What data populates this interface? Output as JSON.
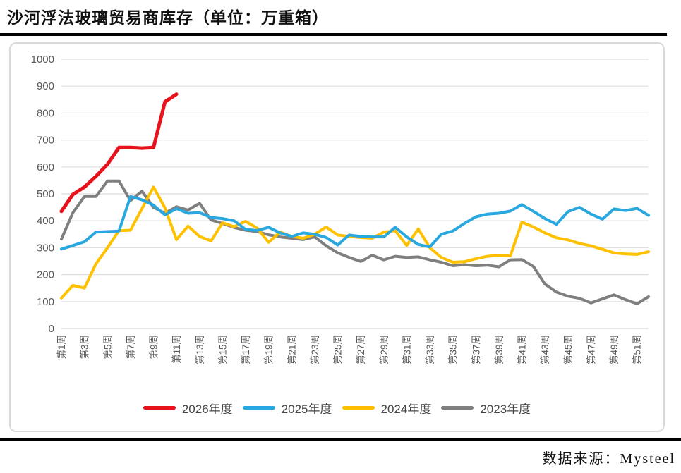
{
  "page": {
    "title": "沙河浮法玻璃贸易商库存（单位：万重箱）",
    "source_label": "数据来源：Mysteel"
  },
  "chart_data": {
    "type": "line",
    "title": "沙河浮法玻璃贸易商库存（单位：万重箱）",
    "unit": "万重箱",
    "grid": true,
    "legend_position": "bottom",
    "y_axis": {
      "min": 0,
      "max": 1000,
      "step": 100,
      "ticks": [
        0,
        100,
        200,
        300,
        400,
        500,
        600,
        700,
        800,
        900,
        1000
      ]
    },
    "x_axis": {
      "weeks_total": 52,
      "labels": [
        "第1周",
        "第3周",
        "第5周",
        "第7周",
        "第9周",
        "第11周",
        "第13周",
        "第15周",
        "第17周",
        "第19周",
        "第21周",
        "第23周",
        "第25周",
        "第27周",
        "第29周",
        "第31周",
        "第33周",
        "第35周",
        "第37周",
        "第39周",
        "第41周",
        "第43周",
        "第45周",
        "第47周",
        "第49周",
        "第51周"
      ],
      "label_week_step": 2
    },
    "series": [
      {
        "name": "2026年度",
        "color": "#e8121c",
        "line_width": 5,
        "values": [
          435,
          498,
          525,
          565,
          610,
          672,
          672,
          670,
          672,
          842,
          870
        ]
      },
      {
        "name": "2025年度",
        "color": "#29a8e0",
        "line_width": 4,
        "values": [
          295,
          308,
          322,
          358,
          360,
          362,
          490,
          478,
          458,
          422,
          445,
          428,
          430,
          412,
          408,
          400,
          368,
          364,
          376,
          355,
          342,
          355,
          350,
          338,
          310,
          347,
          342,
          340,
          340,
          376,
          340,
          312,
          303,
          350,
          362,
          390,
          415,
          425,
          428,
          436,
          460,
          435,
          408,
          387,
          434,
          450,
          425,
          406,
          444,
          438,
          446,
          420
        ]
      },
      {
        "name": "2024年度",
        "color": "#ffc000",
        "line_width": 4,
        "values": [
          113,
          160,
          150,
          240,
          300,
          363,
          365,
          445,
          525,
          448,
          330,
          380,
          342,
          325,
          393,
          378,
          398,
          373,
          320,
          358,
          342,
          335,
          350,
          377,
          347,
          342,
          338,
          335,
          358,
          363,
          308,
          370,
          300,
          264,
          246,
          248,
          259,
          268,
          272,
          270,
          395,
          377,
          355,
          337,
          329,
          316,
          307,
          294,
          281,
          277,
          275,
          285
        ]
      },
      {
        "name": "2023年度",
        "color": "#7f7f7f",
        "line_width": 4,
        "values": [
          332,
          430,
          490,
          490,
          548,
          548,
          475,
          510,
          450,
          428,
          452,
          440,
          465,
          403,
          390,
          375,
          365,
          360,
          348,
          340,
          335,
          330,
          340,
          307,
          281,
          264,
          249,
          272,
          255,
          268,
          264,
          266,
          255,
          246,
          233,
          237,
          233,
          235,
          229,
          255,
          256,
          230,
          165,
          135,
          120,
          112,
          95,
          110,
          125,
          107,
          92,
          118
        ]
      }
    ],
    "style": {
      "gridline_color": "#dedede",
      "tick_label_color": "#595959"
    }
  }
}
